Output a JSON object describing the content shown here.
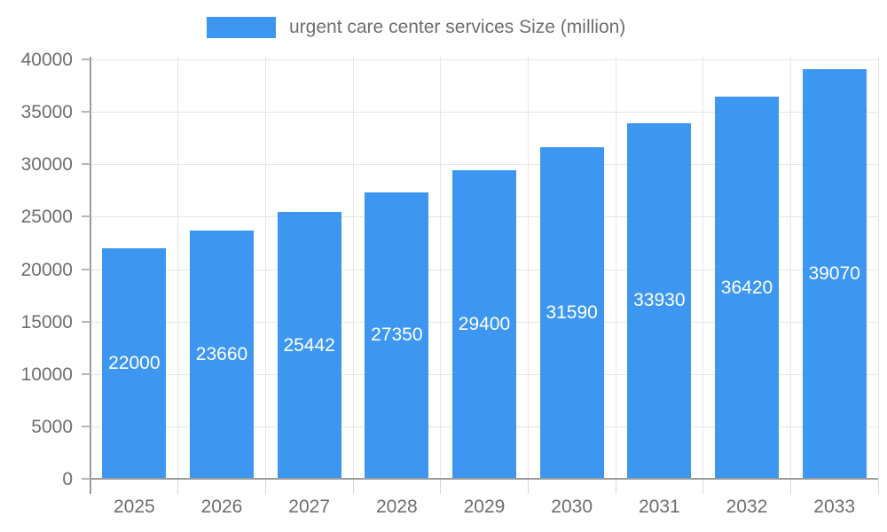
{
  "legend": {
    "label": "urgent care center services Size (million)"
  },
  "chart_data": {
    "type": "bar",
    "title": "urgent care center services Size (million)",
    "categories": [
      "2025",
      "2026",
      "2027",
      "2028",
      "2029",
      "2030",
      "2031",
      "2032",
      "2033"
    ],
    "values": [
      22000,
      23660,
      25442,
      27350,
      29400,
      31590,
      33930,
      36420,
      39070
    ],
    "xlabel": "",
    "ylabel": "",
    "ylim": [
      0,
      40000
    ],
    "ytick_step": 5000,
    "ytick_labels": [
      "0",
      "5000",
      "10000",
      "15000",
      "20000",
      "25000",
      "30000",
      "35000",
      "40000"
    ],
    "grid": true,
    "legend_position": "top-center",
    "value_label_position": "inside-middle",
    "colors": {
      "bar": "#3d97f0",
      "grid": "#e6e6e6",
      "axis": "#9c9c9c",
      "tick_label": "#6e6e6e",
      "value_label": "#ffffff",
      "legend_text": "#6e6e6e",
      "background": "#ffffff"
    }
  }
}
